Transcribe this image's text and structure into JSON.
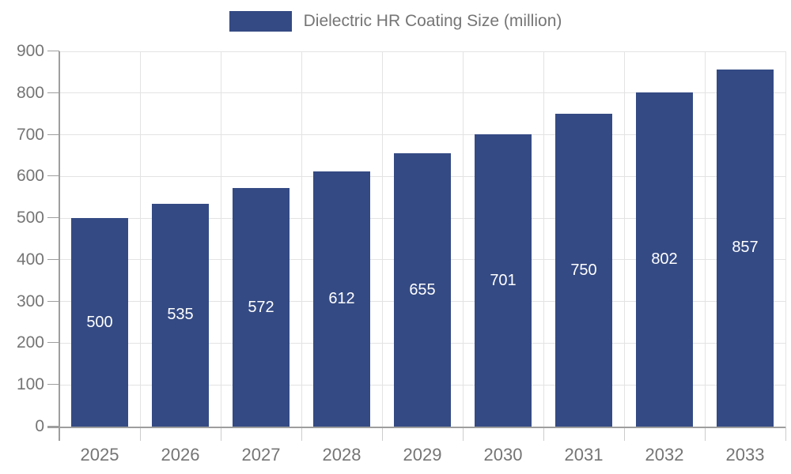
{
  "legend": {
    "label": "Dielectric HR Coating Size (million)"
  },
  "chart_data": {
    "type": "bar",
    "title": "Dielectric HR Coating Size (million)",
    "categories": [
      "2025",
      "2026",
      "2027",
      "2028",
      "2029",
      "2030",
      "2031",
      "2032",
      "2033"
    ],
    "values": [
      500,
      535,
      572,
      612,
      655,
      701,
      750,
      802,
      857
    ],
    "xlabel": "",
    "ylabel": "",
    "ylim": [
      0,
      900
    ],
    "yticks": [
      0,
      100,
      200,
      300,
      400,
      500,
      600,
      700,
      800,
      900
    ],
    "grid": true,
    "legend_position": "top-center",
    "bar_color": "#344a84",
    "value_label_color": "#ffffff",
    "axis_color": "#9e9e9e",
    "gridline_color": "#e3e3e3",
    "tick_label_color": "#757575"
  }
}
